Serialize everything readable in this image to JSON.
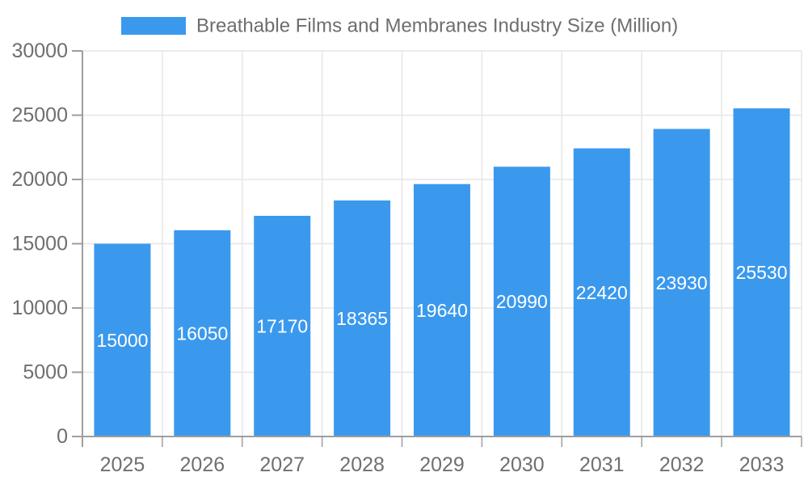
{
  "chart_data": {
    "type": "bar",
    "title": "Breathable Films and Membranes Industry Size (Million)",
    "categories": [
      "2025",
      "2026",
      "2027",
      "2028",
      "2029",
      "2030",
      "2031",
      "2032",
      "2033"
    ],
    "values": [
      15000,
      16050,
      17170,
      18365,
      19640,
      20990,
      22420,
      23930,
      25530
    ],
    "series": [
      {
        "name": "Breathable Films and Membranes Industry Size (Million)",
        "values": [
          15000,
          16050,
          17170,
          18365,
          19640,
          20990,
          22420,
          23930,
          25530
        ]
      }
    ],
    "xlabel": "",
    "ylabel": "",
    "ylim": [
      0,
      30000
    ],
    "yticks": [
      0,
      5000,
      10000,
      15000,
      20000,
      25000,
      30000
    ],
    "ytick_labels": [
      "0",
      "5000",
      "10000",
      "15000",
      "20000",
      "25000",
      "30000"
    ],
    "bar_value_labels": [
      "15000",
      "16050",
      "17170",
      "18365",
      "19640",
      "20990",
      "22420",
      "23930",
      "25530"
    ],
    "legend_position": "top",
    "grid": "on",
    "colors": {
      "bar": "#3b99ed",
      "grid": "#e6e6e6",
      "axis": "#9e9e9e",
      "axis_label": "#6f6f6f",
      "bar_label": "#ffffff",
      "legend_text": "#6e6e6e",
      "background": "#ffffff"
    }
  }
}
